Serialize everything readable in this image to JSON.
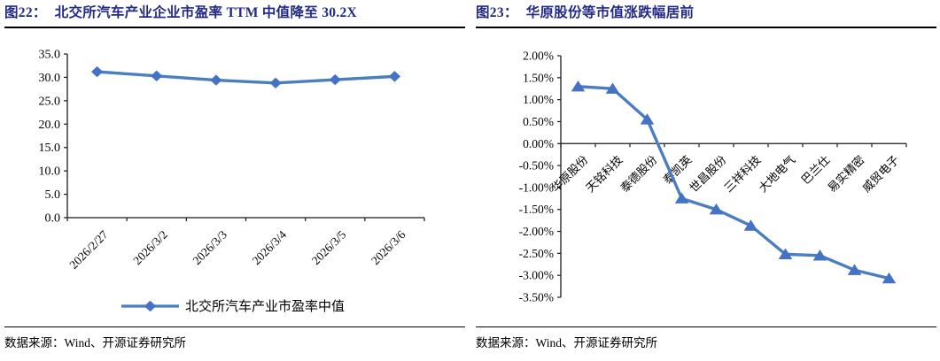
{
  "theme": {
    "title_color": "#222a85",
    "series_color": "#4472c4",
    "line_color": "#4a7ec0",
    "axis_color": "#1a1a1a",
    "text_color": "#000000"
  },
  "panels": [
    {
      "figure_label": "图22：",
      "title": "北交所汽车产业企业市盈率 TTM 中值降至 30.2X",
      "source_prefix": "数据来源：",
      "source_text": "Wind、开源证券研究所"
    },
    {
      "figure_label": "图23：",
      "title": "华原股份等市值涨跌幅居前",
      "source_prefix": "数据来源：",
      "source_text": "Wind、开源证券研究所"
    }
  ],
  "chart_data": [
    {
      "type": "line",
      "title": "北交所汽车产业企业市盈率 TTM 中值降至 30.2X",
      "categories": [
        "2026/2/27",
        "2026/3/2",
        "2026/3/3",
        "2026/3/4",
        "2026/3/5",
        "2026/3/6"
      ],
      "series": [
        {
          "name": "北交所汽车产业市盈率中值",
          "values": [
            31.2,
            30.3,
            29.4,
            28.8,
            29.5,
            30.2
          ]
        }
      ],
      "ylim": [
        0,
        35
      ],
      "ytick_step": 5,
      "y_format": "fixed1",
      "marker": "diamond",
      "legend_position": "bottom",
      "grid": false,
      "xlabel": "",
      "ylabel": ""
    },
    {
      "type": "line",
      "title": "华原股份等市值涨跌幅居前",
      "categories": [
        "华原股份",
        "天铭科技",
        "泰德股份",
        "泰凯英",
        "世昌股份",
        "三祥科技",
        "大地电气",
        "巴兰仕",
        "易实精密",
        "威贸电子"
      ],
      "values": [
        1.3,
        1.25,
        0.55,
        -1.25,
        -1.5,
        -1.87,
        -2.52,
        -2.55,
        -2.88,
        -3.07
      ],
      "ylim": [
        -3.5,
        2.0
      ],
      "ytick_step": 0.5,
      "y_format": "pct2",
      "marker": "triangle-up",
      "legend_position": "none",
      "grid": false,
      "xlabel": "",
      "ylabel": ""
    }
  ]
}
